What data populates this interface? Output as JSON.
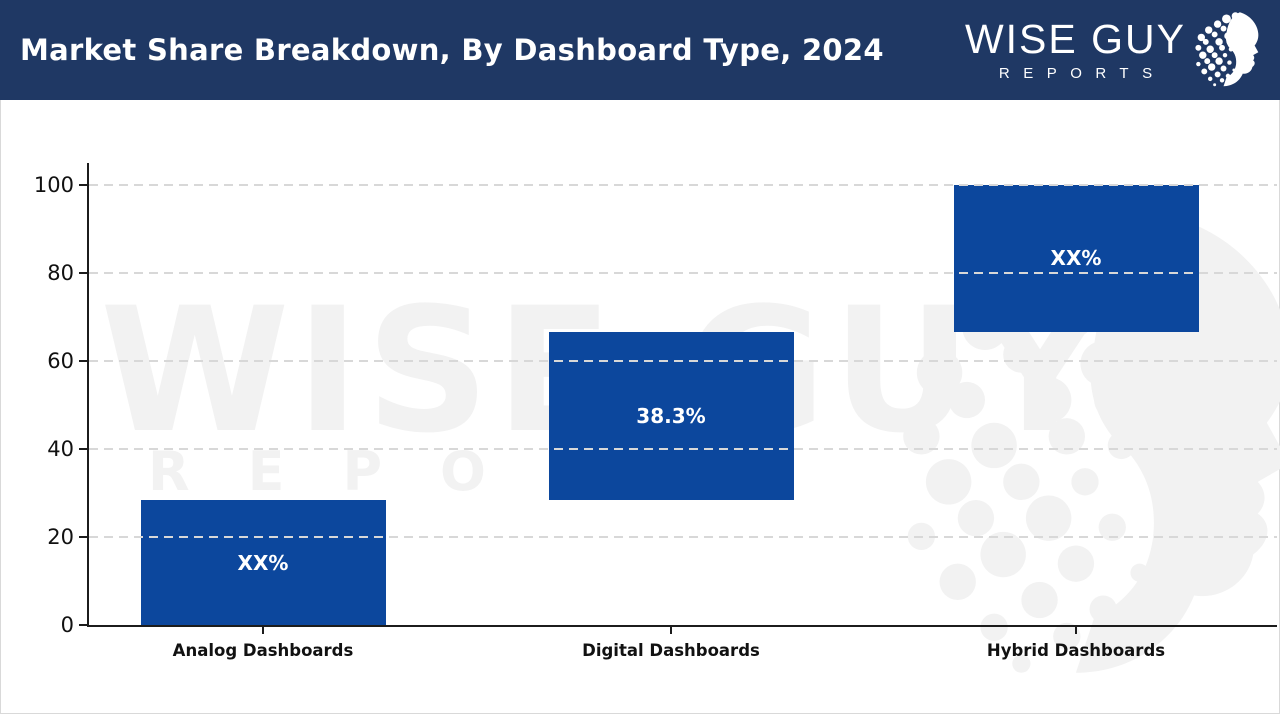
{
  "header": {
    "title": "Market Share Breakdown, By Dashboard Type, 2024",
    "logo": {
      "line1": "WISE GUY",
      "line2": "REPORTS"
    }
  },
  "watermark": {
    "line1": "WISE GUY",
    "line2": "REPORTS"
  },
  "chart_data": {
    "type": "bar",
    "subtype": "floating-stacked-segments",
    "title": "Market Share Breakdown, By Dashboard Type, 2024",
    "categories": [
      "Analog Dashboards",
      "Digital Dashboards",
      "Hybrid Dashboards"
    ],
    "segments": [
      {
        "category": "Analog Dashboards",
        "start": 0,
        "end": 28.4,
        "label": "XX%"
      },
      {
        "category": "Digital Dashboards",
        "start": 28.4,
        "end": 66.7,
        "label": "38.3%"
      },
      {
        "category": "Hybrid Dashboards",
        "start": 66.7,
        "end": 100,
        "label": "XX%"
      }
    ],
    "xlabel": "",
    "ylabel": "",
    "ylim": [
      0,
      100
    ],
    "yticks": [
      0,
      20,
      40,
      60,
      80,
      100
    ],
    "grid": "horizontal-dashed",
    "legend": "none",
    "colors": {
      "bar": "#0c479d",
      "bar_label": "#ffffff",
      "header_bg": "#1f3864",
      "grid": "#d8d8d8",
      "axis": "#1c1c1c",
      "watermark": "#f2f2f2"
    }
  }
}
